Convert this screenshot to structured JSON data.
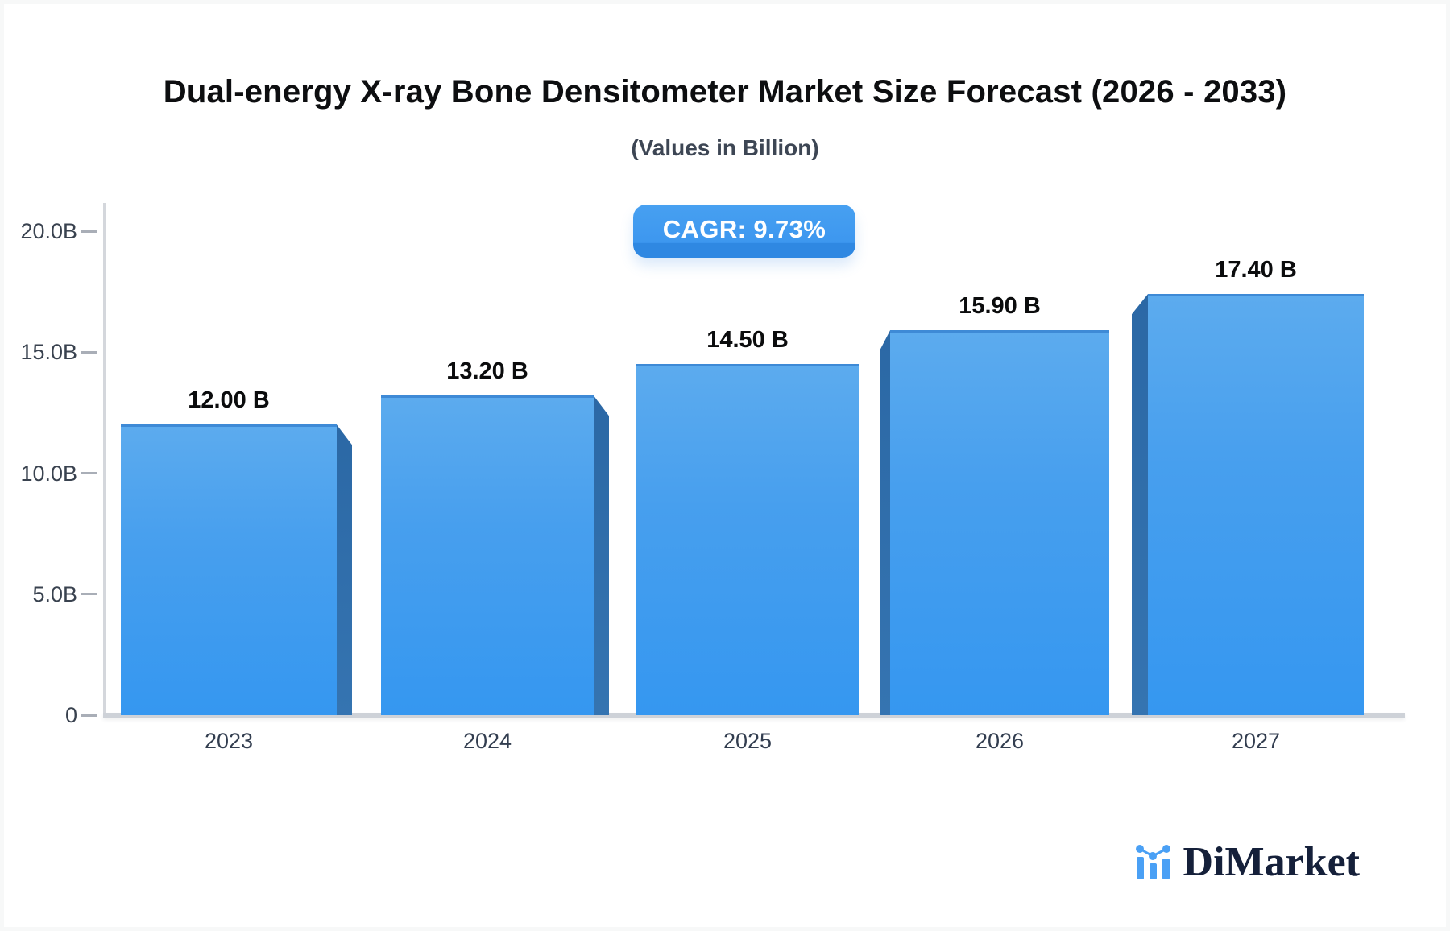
{
  "chart_data": {
    "type": "bar",
    "title": "Dual-energy X-ray Bone Densitometer Market Size Forecast (2026 - 2033)",
    "subtitle": "(Values in Billion)",
    "cagr_label": "CAGR: 9.73%",
    "categories": [
      "2023",
      "2024",
      "2025",
      "2026",
      "2027"
    ],
    "values": [
      12.0,
      13.2,
      14.5,
      15.9,
      17.4
    ],
    "value_labels": [
      "12.00 B",
      "13.20 B",
      "14.50 B",
      "15.90 B",
      "17.40 B"
    ],
    "ylim": [
      0,
      20
    ],
    "y_ticks": [
      {
        "label": "20.0B",
        "value": 20
      },
      {
        "label": "15.0B",
        "value": 15
      },
      {
        "label": "10.0B",
        "value": 10
      },
      {
        "label": "5.0B",
        "value": 5
      },
      {
        "label": "0",
        "value": 0
      }
    ],
    "grid": "off",
    "legend": "none",
    "colors": {
      "bar_top": "#5cabee",
      "bar_bottom": "#3597f0",
      "bar_side": "#2e6fae",
      "badge": "#3d97ef",
      "axis_line": "#ced2d8",
      "tick_text": "#39424f",
      "value_text": "#0b0c0d"
    }
  },
  "footer": {
    "logo_text": "DiMarket"
  }
}
